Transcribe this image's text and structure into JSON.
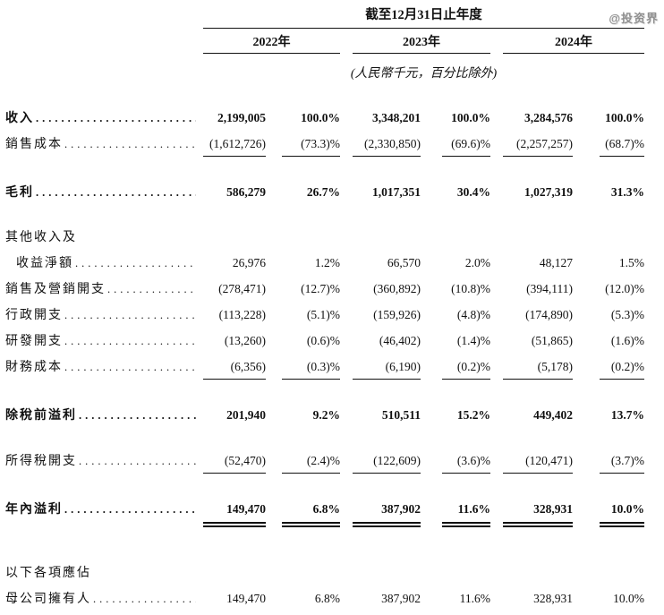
{
  "watermark": "@投资界",
  "table": {
    "period_header": "截至12月31日止年度",
    "unit_note": "(人民幣千元，百分比除外)",
    "year_headers": [
      "2022年",
      "2023年",
      "2024年"
    ],
    "rows": [
      {
        "label": "收入",
        "dots": true,
        "bold": true,
        "underline": "none",
        "group_start": false,
        "big_gap": false,
        "indent": false,
        "values": [
          "2,199,005",
          "100.0%",
          "3,348,201",
          "100.0%",
          "3,284,576",
          "100.0%"
        ]
      },
      {
        "label": "銷售成本",
        "dots": true,
        "bold": false,
        "underline": "single",
        "group_start": false,
        "big_gap": false,
        "indent": false,
        "values": [
          "(1,612,726)",
          "(73.3)%",
          "(2,330,850)",
          "(69.6)%",
          "(2,257,257)",
          "(68.7)%"
        ]
      },
      {
        "label": "毛利",
        "dots": true,
        "bold": true,
        "underline": "none",
        "group_start": true,
        "big_gap": false,
        "indent": false,
        "values": [
          "586,279",
          "26.7%",
          "1,017,351",
          "30.4%",
          "1,027,319",
          "31.3%"
        ]
      },
      {
        "label": "其他收入及",
        "dots": false,
        "bold": false,
        "underline": "none",
        "group_start": true,
        "big_gap": false,
        "indent": false,
        "values": []
      },
      {
        "label": "收益淨額",
        "dots": true,
        "bold": false,
        "underline": "none",
        "group_start": false,
        "big_gap": false,
        "indent": true,
        "values": [
          "26,976",
          "1.2%",
          "66,570",
          "2.0%",
          "48,127",
          "1.5%"
        ]
      },
      {
        "label": "銷售及營銷開支",
        "dots": true,
        "bold": false,
        "underline": "none",
        "group_start": false,
        "big_gap": false,
        "indent": false,
        "values": [
          "(278,471)",
          "(12.7)%",
          "(360,892)",
          "(10.8)%",
          "(394,111)",
          "(12.0)%"
        ]
      },
      {
        "label": "行政開支",
        "dots": true,
        "bold": false,
        "underline": "none",
        "group_start": false,
        "big_gap": false,
        "indent": false,
        "values": [
          "(113,228)",
          "(5.1)%",
          "(159,926)",
          "(4.8)%",
          "(174,890)",
          "(5.3)%"
        ]
      },
      {
        "label": "研發開支",
        "dots": true,
        "bold": false,
        "underline": "none",
        "group_start": false,
        "big_gap": false,
        "indent": false,
        "values": [
          "(13,260)",
          "(0.6)%",
          "(46,402)",
          "(1.4)%",
          "(51,865)",
          "(1.6)%"
        ]
      },
      {
        "label": "財務成本",
        "dots": true,
        "bold": false,
        "underline": "single",
        "group_start": false,
        "big_gap": false,
        "indent": false,
        "values": [
          "(6,356)",
          "(0.3)%",
          "(6,190)",
          "(0.2)%",
          "(5,178)",
          "(0.2)%"
        ]
      },
      {
        "label": "除稅前溢利",
        "dots": true,
        "bold": true,
        "underline": "none",
        "group_start": true,
        "big_gap": false,
        "indent": false,
        "values": [
          "201,940",
          "9.2%",
          "510,511",
          "15.2%",
          "449,402",
          "13.7%"
        ]
      },
      {
        "label": "所得稅開支",
        "dots": true,
        "bold": false,
        "underline": "single",
        "group_start": true,
        "big_gap": false,
        "indent": false,
        "values": [
          "(52,470)",
          "(2.4)%",
          "(122,609)",
          "(3.6)%",
          "(120,471)",
          "(3.7)%"
        ]
      },
      {
        "label": "年內溢利",
        "dots": true,
        "bold": true,
        "underline": "double",
        "group_start": true,
        "big_gap": false,
        "indent": false,
        "values": [
          "149,470",
          "6.8%",
          "387,902",
          "11.6%",
          "328,931",
          "10.0%"
        ]
      },
      {
        "label": "以下各項應佔",
        "dots": false,
        "bold": false,
        "underline": "none",
        "group_start": false,
        "big_gap": true,
        "indent": false,
        "values": []
      },
      {
        "label": "母公司擁有人",
        "dots": true,
        "bold": false,
        "underline": "none",
        "group_start": false,
        "big_gap": false,
        "indent": false,
        "values": [
          "149,470",
          "6.8%",
          "387,902",
          "11.6%",
          "328,931",
          "10.0%"
        ]
      }
    ]
  }
}
